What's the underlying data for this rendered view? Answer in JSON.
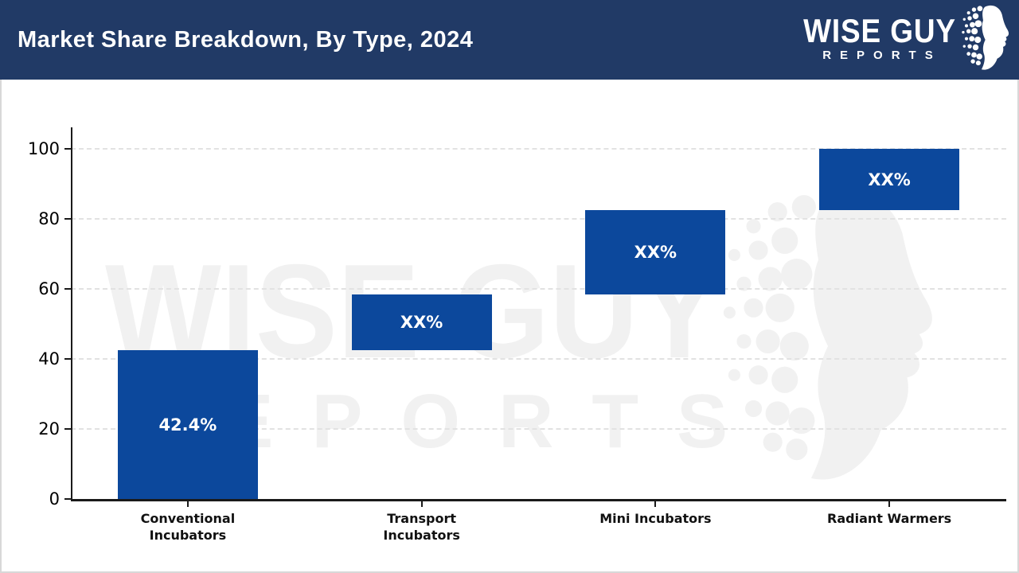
{
  "header": {
    "title": "Market Share Breakdown, By Type, 2024",
    "logo": {
      "line1": "WISE GUY",
      "line2": "REPORTS"
    }
  },
  "watermark": {
    "line1": "WISE GUY",
    "line2": "REPORTS"
  },
  "chart_data": {
    "type": "bar",
    "subtype": "waterfall",
    "title": "Market Share Breakdown, By Type, 2024",
    "categories": [
      "Conventional Incubators",
      "Transport Incubators",
      "Mini Incubators",
      "Radiant Warmers"
    ],
    "category_lines": [
      [
        "Conventional",
        "Incubators"
      ],
      [
        "Transport",
        "Incubators"
      ],
      [
        "Mini Incubators"
      ],
      [
        "Radiant Warmers"
      ]
    ],
    "segments": [
      {
        "category": "Conventional Incubators",
        "start": 0,
        "end": 42.4,
        "value": 42.4,
        "label": "42.4%"
      },
      {
        "category": "Transport Incubators",
        "start": 42.4,
        "end": 58.4,
        "value": 16.0,
        "label": "XX%"
      },
      {
        "category": "Mini Incubators",
        "start": 58.4,
        "end": 82.5,
        "value": 24.1,
        "label": "XX%"
      },
      {
        "category": "Radiant Warmers",
        "start": 82.5,
        "end": 100,
        "value": 17.5,
        "label": "XX%"
      }
    ],
    "xlabel": "",
    "ylabel": "",
    "y_ticks": [
      0,
      20,
      40,
      60,
      80,
      100
    ],
    "ylim": [
      0,
      106
    ],
    "grid": true,
    "gridline_style": "dashed",
    "legend": "none",
    "bar_color": "#0c489c",
    "bar_label_color": "#ffffff"
  },
  "colors": {
    "header_bg": "#213a66",
    "title_text": "#ffffff",
    "bar": "#0c489c",
    "watermark": "#f1f1f1",
    "gridline": "#e2e2e2",
    "axis": "#1a1a1a"
  }
}
